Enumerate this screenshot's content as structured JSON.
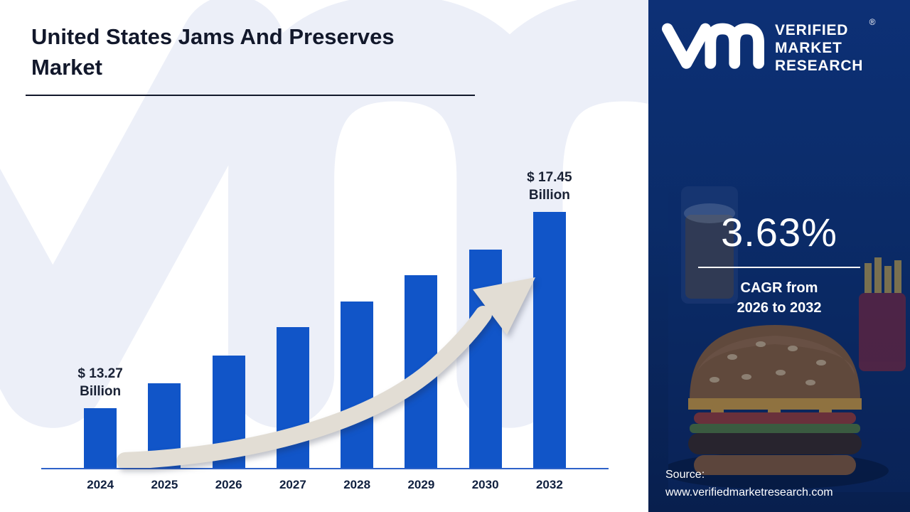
{
  "title": "United States Jams And Preserves Market",
  "title_lines": [
    "United States Jams And Preserves",
    "Market"
  ],
  "brand": {
    "lines": [
      "VERIFIED",
      "MARKET",
      "RESEARCH"
    ],
    "registered": "®"
  },
  "sidebar": {
    "cagr_value": "3.63%",
    "cagr_line1": "CAGR from",
    "cagr_line2": "2026 to 2032",
    "source_label": "Source:",
    "source_url": "www.verifiedmarketresearch.com",
    "panel_color": "#0b2c69"
  },
  "icons": {
    "watermark": "vm-monogram",
    "logo": "vmr-monogram",
    "arrow": "growth-trend-arrow",
    "photo": "burger-and-drink"
  },
  "chart_data": {
    "type": "bar",
    "title": "United States Jams And Preserves Market",
    "categories": [
      "2024",
      "2025",
      "2026",
      "2027",
      "2028",
      "2029",
      "2030",
      "2032"
    ],
    "values": [
      13.27,
      13.8,
      14.4,
      15.0,
      15.55,
      16.1,
      16.65,
      17.45
    ],
    "first_bar_label": {
      "value": "$ 13.27",
      "unit": "Billion"
    },
    "last_bar_label": {
      "value": "$ 17.45",
      "unit": "Billion"
    },
    "bar_color": "#1155c8",
    "axis_color": "#2e62c9",
    "ylim": [
      12,
      18
    ],
    "xlabel": "",
    "ylabel": "",
    "grid": false,
    "legend": false
  }
}
